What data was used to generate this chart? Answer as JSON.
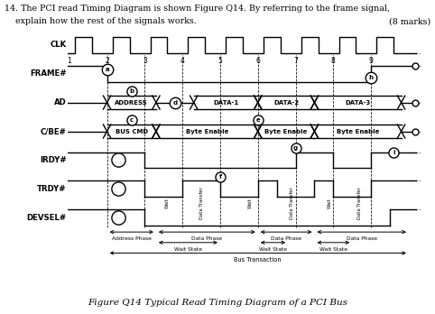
{
  "title_line1": "14. The PCI read Timing Diagram is shown Figure Q14. By referring to the frame signal,",
  "title_line2": "    explain how the rest of the signals works.",
  "marks_text": "(8 marks)",
  "figure_caption": "Figure Q14 Typical Read Timing Diagram of a PCI Bus",
  "background": "#ffffff",
  "clk_numbers": [
    "1",
    "2",
    "3",
    "4",
    "5",
    "6",
    "7",
    "8",
    "9"
  ],
  "signal_names": [
    "CLK",
    "FRAME#",
    "AD",
    "C/BE#",
    "IRDY#",
    "TRDY#",
    "DEVSEL#"
  ]
}
